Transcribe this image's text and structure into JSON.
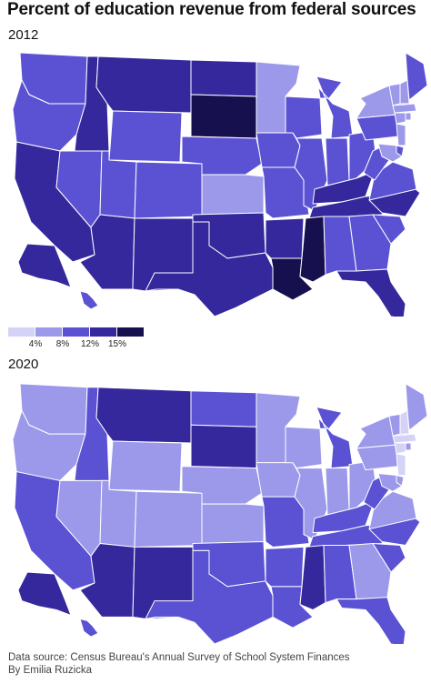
{
  "title": "Percent of education revenue from federal sources",
  "maps": [
    {
      "year": "2012"
    },
    {
      "year": "2020"
    }
  ],
  "legend": {
    "colors": [
      "#d4d2f7",
      "#9c98ea",
      "#5a52d3",
      "#35289c",
      "#16104f"
    ],
    "ticks": [
      "4%",
      "8%",
      "12%",
      "15%"
    ]
  },
  "footer": {
    "source": "Data source: Census Bureau's Annual Survey of School System Finances",
    "byline": "By Emilia Ruzicka"
  },
  "chart_data": {
    "type": "choropleth",
    "title": "Percent of education revenue from federal sources",
    "legend_bins": [
      "<4%",
      "4–8%",
      "8–12%",
      "12–15%",
      ">15%"
    ],
    "legend_ticks": [
      "4%",
      "8%",
      "12%",
      "15%"
    ],
    "maps": [
      {
        "year": "2012",
        "state_bins": {
          "WA": 2,
          "OR": 2,
          "CA": 3,
          "NV": 2,
          "ID": 3,
          "MT": 3,
          "WY": 2,
          "UT": 2,
          "CO": 2,
          "AZ": 3,
          "NM": 3,
          "ND": 3,
          "SD": 4,
          "NE": 2,
          "KS": 1,
          "OK": 3,
          "TX": 3,
          "MN": 1,
          "IA": 2,
          "MO": 2,
          "AR": 3,
          "LA": 4,
          "WI": 2,
          "IL": 2,
          "MI": 2,
          "IN": 2,
          "OH": 2,
          "KY": 3,
          "TN": 3,
          "MS": 4,
          "AL": 2,
          "GA": 2,
          "FL": 3,
          "SC": 2,
          "NC": 3,
          "VA": 2,
          "WV": 2,
          "PA": 2,
          "NY": 1,
          "VT": 1,
          "NH": 1,
          "ME": 2,
          "MA": 1,
          "CT": 1,
          "RI": 1,
          "NJ": 1,
          "DE": 2,
          "MD": 1,
          "AK": 3,
          "HI": 2
        }
      },
      {
        "year": "2020",
        "state_bins": {
          "WA": 1,
          "OR": 1,
          "CA": 2,
          "NV": 1,
          "ID": 2,
          "MT": 3,
          "WY": 1,
          "UT": 1,
          "CO": 1,
          "AZ": 3,
          "NM": 3,
          "ND": 2,
          "SD": 3,
          "NE": 1,
          "KS": 1,
          "OK": 2,
          "TX": 2,
          "MN": 1,
          "IA": 1,
          "MO": 2,
          "AR": 2,
          "LA": 2,
          "WI": 1,
          "IL": 1,
          "MI": 2,
          "IN": 1,
          "OH": 1,
          "KY": 2,
          "TN": 2,
          "MS": 3,
          "AL": 2,
          "GA": 1,
          "FL": 2,
          "SC": 2,
          "NC": 2,
          "VA": 1,
          "WV": 2,
          "PA": 1,
          "NY": 1,
          "VT": 1,
          "NH": 0,
          "ME": 1,
          "MA": 0,
          "CT": 0,
          "RI": 1,
          "NJ": 0,
          "DE": 1,
          "MD": 1,
          "AK": 3,
          "HI": 2
        }
      }
    ]
  }
}
